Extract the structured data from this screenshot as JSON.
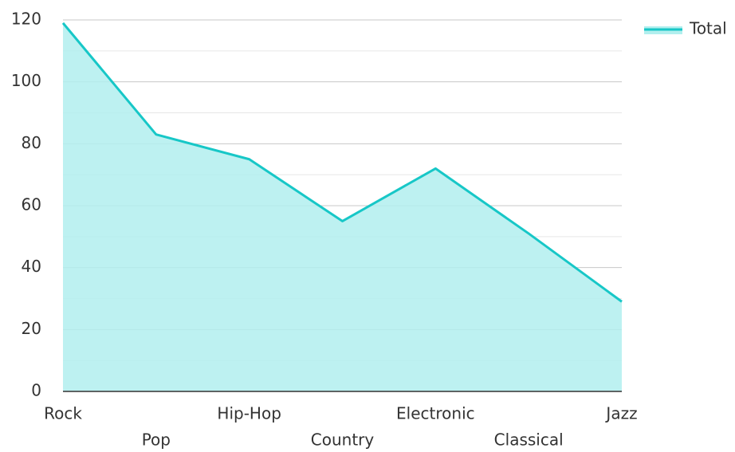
{
  "chart_data": {
    "type": "area",
    "categories": [
      "Rock",
      "Pop",
      "Hip-Hop",
      "Country",
      "Electronic",
      "Classical",
      "Jazz"
    ],
    "series": [
      {
        "name": "Total",
        "color": "#17c7c7",
        "fill": "#b2efee",
        "values": [
          119,
          83,
          75,
          55,
          72,
          51,
          29
        ]
      }
    ],
    "ylim": [
      0,
      120
    ],
    "yticks": [
      0,
      20,
      40,
      60,
      80,
      100,
      120
    ],
    "grid": true,
    "minor_grid": true,
    "legend": "top-right"
  }
}
